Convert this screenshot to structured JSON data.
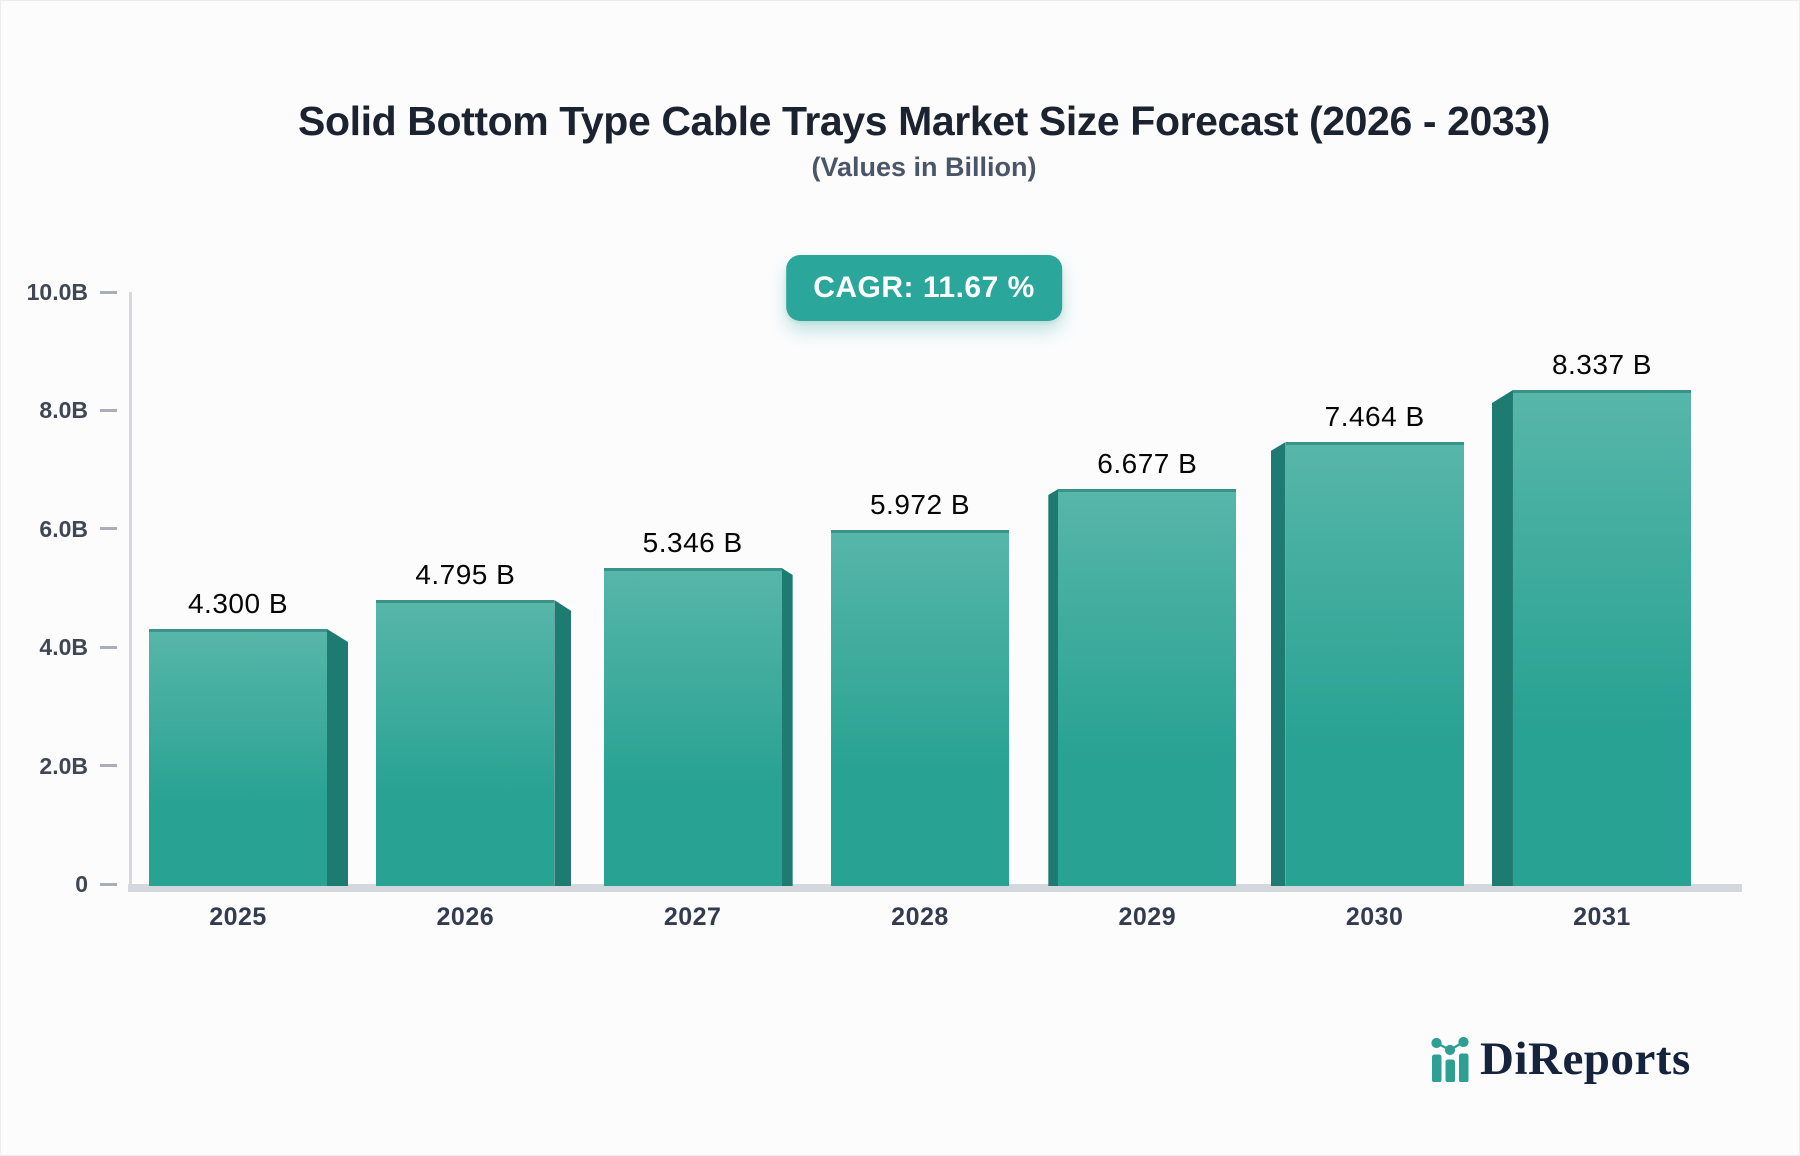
{
  "header": {
    "title": "Solid Bottom Type Cable Trays Market Size Forecast (2026 - 2033)",
    "subtitle": "(Values in Billion)",
    "cagr_label": "CAGR: 11.67 %"
  },
  "chart_data": {
    "type": "bar",
    "title": "Solid Bottom Type Cable Trays Market Size Forecast (2026 - 2033)",
    "subtitle": "(Values in Billion)",
    "unit": "Billion",
    "cagr_percent": 11.67,
    "categories": [
      "2025",
      "2026",
      "2027",
      "2028",
      "2029",
      "2030",
      "2031"
    ],
    "values": [
      4.3,
      4.795,
      5.346,
      5.972,
      6.677,
      7.464,
      8.337
    ],
    "value_labels": [
      "4.300 B",
      "4.795 B",
      "5.346 B",
      "5.972 B",
      "6.677 B",
      "7.464 B",
      "8.337 B"
    ],
    "y_ticks": [
      {
        "value": 10,
        "label": "10.0B"
      },
      {
        "value": 8,
        "label": "8.0B"
      },
      {
        "value": 6,
        "label": "6.0B"
      },
      {
        "value": 4,
        "label": "4.0B"
      },
      {
        "value": 2,
        "label": "2.0B"
      },
      {
        "value": 0,
        "label": "0"
      }
    ],
    "ylim": [
      0,
      10
    ],
    "xlabel": "",
    "ylabel": "",
    "grid": false,
    "legend": "none",
    "bar_colors": {
      "face_top": "#57b6a9",
      "face_bottom": "#28a293",
      "side_face": "#1e7b71",
      "top_edge": "#2a8d81"
    }
  },
  "axes_style": {
    "axis_line_color": "#d5d8dd",
    "tick_color": "#a9afb8",
    "tick_label_color": "#3f4755",
    "category_label_color": "#333c4e",
    "value_label_color": "#060607"
  },
  "badge": {
    "background": "#2aa79a",
    "text_color": "#ffffff"
  },
  "logo": {
    "text": "DiReports",
    "icon": "mini-bar-chart-icon",
    "text_color": "#15233c",
    "icon_color": "#2f9e93"
  }
}
